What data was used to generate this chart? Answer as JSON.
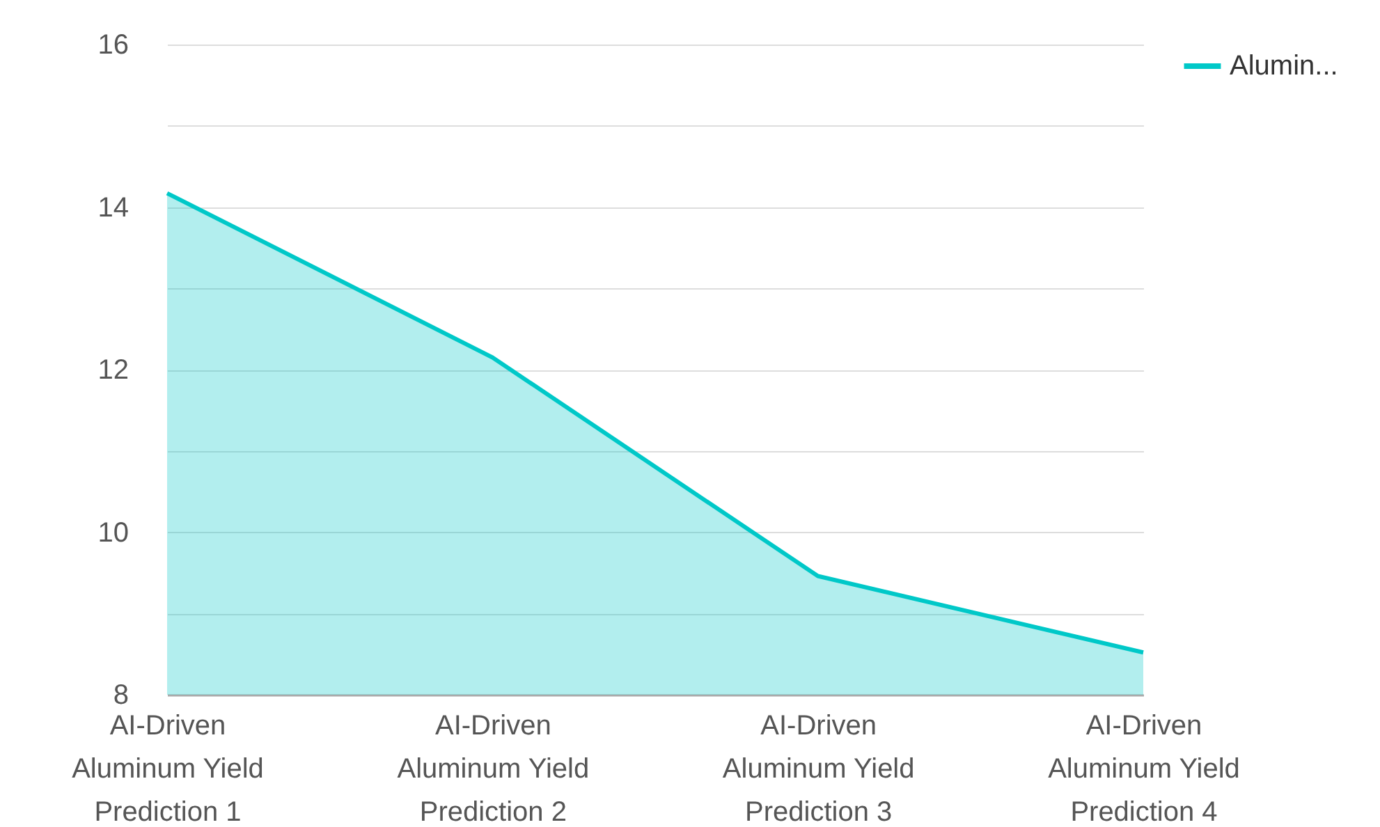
{
  "chart_data": {
    "type": "area",
    "categories": [
      "AI-Driven Aluminum Yield Prediction 1",
      "AI-Driven Aluminum Yield Prediction 2",
      "AI-Driven Aluminum Yield Prediction 3",
      "AI-Driven Aluminum Yield Prediction 4"
    ],
    "series": [
      {
        "name": "Alumin...",
        "color": "#00c8c8",
        "values": [
          14.17,
          12.15,
          9.46,
          8.52
        ]
      }
    ],
    "ylim": [
      8,
      16
    ],
    "yticks": [
      8,
      {
        "value": 9,
        "label": null
      },
      10,
      {
        "value": 11,
        "label": null
      },
      12,
      {
        "value": 13,
        "label": null
      },
      14,
      {
        "value": 15,
        "label": null
      },
      16
    ],
    "grid": "y",
    "legend": "top right"
  }
}
